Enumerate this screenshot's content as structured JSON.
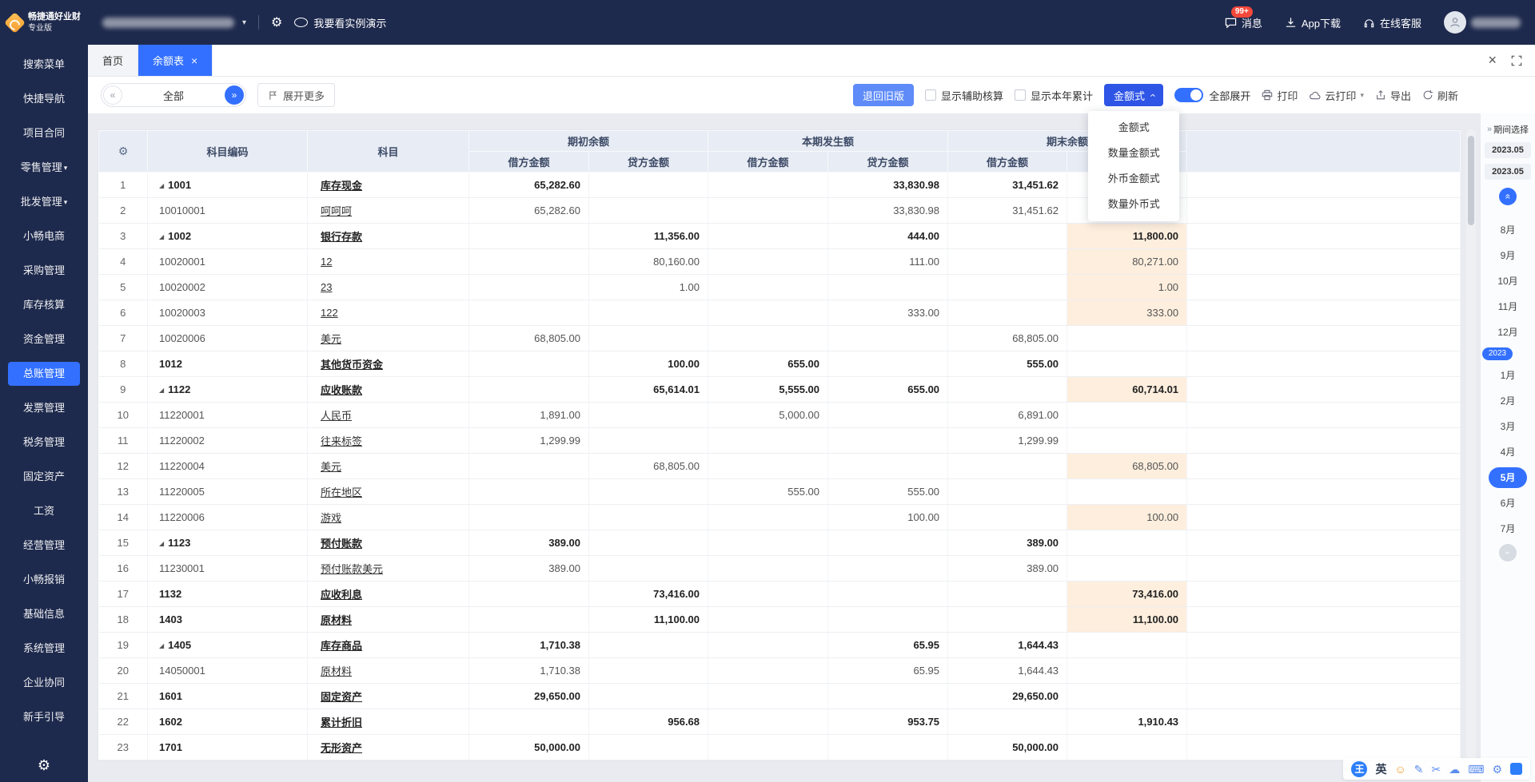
{
  "brand": {
    "line1": "畅捷通好业财",
    "line2": "专业版"
  },
  "topbar": {
    "demo_link": "我要看实例演示",
    "messages": "消息",
    "badge": "99+",
    "app_download": "App下载",
    "support": "在线客服"
  },
  "sidebar": {
    "items": [
      {
        "key": "search-menu",
        "label": "搜索菜单"
      },
      {
        "key": "quick-nav",
        "label": "快捷导航"
      },
      {
        "key": "project-contract",
        "label": "项目合同"
      },
      {
        "key": "retail-mgmt",
        "label": "零售管理",
        "arrow": true
      },
      {
        "key": "wholesale-mgmt",
        "label": "批发管理",
        "arrow": true
      },
      {
        "key": "xiaochang-ecommerce",
        "label": "小畅电商"
      },
      {
        "key": "purchase-mgmt",
        "label": "采购管理"
      },
      {
        "key": "inventory-accounting",
        "label": "库存核算"
      },
      {
        "key": "funds-mgmt",
        "label": "资金管理"
      },
      {
        "key": "general-ledger",
        "label": "总账管理",
        "active": true
      },
      {
        "key": "invoice-mgmt",
        "label": "发票管理"
      },
      {
        "key": "tax-mgmt",
        "label": "税务管理"
      },
      {
        "key": "fixed-assets",
        "label": "固定资产"
      },
      {
        "key": "payroll",
        "label": "工资"
      },
      {
        "key": "operations-mgmt",
        "label": "经营管理"
      },
      {
        "key": "xiaochang-expense",
        "label": "小畅报销"
      },
      {
        "key": "basic-info",
        "label": "基础信息"
      },
      {
        "key": "system-mgmt",
        "label": "系统管理"
      },
      {
        "key": "enterprise-collab",
        "label": "企业协同"
      },
      {
        "key": "beginner-guide",
        "label": "新手引导"
      }
    ]
  },
  "tabs": {
    "home": "首页",
    "balance": "余额表"
  },
  "toolbar": {
    "filter": "全部",
    "expand_more": "展开更多",
    "back_old": "退回旧版",
    "show_aux": "显示辅助核算",
    "show_ytd": "显示本年累计",
    "format": "金额式",
    "expand_all": "全部展开",
    "print": "打印",
    "cloud_print": "云打印",
    "export": "导出",
    "refresh": "刷新"
  },
  "format_menu": {
    "items": [
      "金额式",
      "数量金额式",
      "外币金额式",
      "数量外币式"
    ]
  },
  "period": {
    "title": "期间选择",
    "date_start": "2023.05",
    "date_end": "2023.05",
    "year": "2023",
    "months_before": [
      "8月",
      "9月",
      "10月",
      "11月",
      "12月"
    ],
    "months_after": [
      "1月",
      "2月",
      "3月",
      "4月",
      "5月",
      "6月",
      "7月"
    ],
    "selected": "5月"
  },
  "table": {
    "groups": {
      "opening": "期初余额",
      "current": "本期发生额",
      "ending": "期末余额"
    },
    "headers": {
      "code": "科目编码",
      "subject": "科目",
      "debit": "借方金额",
      "credit": "贷方金额"
    },
    "rows": [
      {
        "n": "1",
        "code": "1001",
        "name": "库存现金",
        "bold": true,
        "exp": true,
        "obd": "65,282.60",
        "cpc": "33,830.98",
        "ebd": "31,451.62"
      },
      {
        "n": "2",
        "code": "10010001",
        "name": "呵呵呵",
        "obd": "65,282.60",
        "cpc": "33,830.98",
        "ebd": "31,451.62"
      },
      {
        "n": "3",
        "code": "1002",
        "name": "银行存款",
        "bold": true,
        "exp": true,
        "obc": "11,356.00",
        "cpc": "444.00",
        "ebc": "11,800.00",
        "flag": true
      },
      {
        "n": "4",
        "code": "10020001",
        "name": "12",
        "obc": "80,160.00",
        "cpc": "111.00",
        "ebc": "80,271.00",
        "flag": true
      },
      {
        "n": "5",
        "code": "10020002",
        "name": "23",
        "obc": "1.00",
        "ebc": "1.00",
        "flag": true
      },
      {
        "n": "6",
        "code": "10020003",
        "name": "122",
        "cpc": "333.00",
        "ebc": "333.00",
        "flag": true
      },
      {
        "n": "7",
        "code": "10020006",
        "name": "美元",
        "obd": "68,805.00",
        "ebd": "68,805.00"
      },
      {
        "n": "8",
        "code": "1012",
        "name": "其他货币资金",
        "bold": true,
        "obc": "100.00",
        "cpd": "655.00",
        "ebd": "555.00"
      },
      {
        "n": "9",
        "code": "1122",
        "name": "应收账款",
        "bold": true,
        "exp": true,
        "obc": "65,614.01",
        "cpd": "5,555.00",
        "cpc": "655.00",
        "ebc": "60,714.01",
        "flag": true
      },
      {
        "n": "10",
        "code": "11220001",
        "name": "人民币",
        "obd": "1,891.00",
        "cpd": "5,000.00",
        "ebd": "6,891.00"
      },
      {
        "n": "11",
        "code": "11220002",
        "name": "往来标签",
        "obd": "1,299.99",
        "ebd": "1,299.99"
      },
      {
        "n": "12",
        "code": "11220004",
        "name": "美元",
        "obc": "68,805.00",
        "ebc": "68,805.00",
        "flag": true
      },
      {
        "n": "13",
        "code": "11220005",
        "name": "所在地区",
        "cpd": "555.00",
        "cpc": "555.00"
      },
      {
        "n": "14",
        "code": "11220006",
        "name": "游戏",
        "cpc": "100.00",
        "ebc": "100.00",
        "flag": true
      },
      {
        "n": "15",
        "code": "1123",
        "name": "预付账款",
        "bold": true,
        "exp": true,
        "obd": "389.00",
        "ebd": "389.00"
      },
      {
        "n": "16",
        "code": "11230001",
        "name": "预付账款美元",
        "obd": "389.00",
        "ebd": "389.00"
      },
      {
        "n": "17",
        "code": "1132",
        "name": "应收利息",
        "bold": true,
        "obc": "73,416.00",
        "ebc": "73,416.00",
        "flag": true
      },
      {
        "n": "18",
        "code": "1403",
        "name": "原材料",
        "bold": true,
        "obc": "11,100.00",
        "ebc": "11,100.00",
        "flag": true
      },
      {
        "n": "19",
        "code": "1405",
        "name": "库存商品",
        "bold": true,
        "exp": true,
        "obd": "1,710.38",
        "cpc": "65.95",
        "ebd": "1,644.43"
      },
      {
        "n": "20",
        "code": "14050001",
        "name": "原材料",
        "obd": "1,710.38",
        "cpc": "65.95",
        "ebd": "1,644.43"
      },
      {
        "n": "21",
        "code": "1601",
        "name": "固定资产",
        "bold": true,
        "obd": "29,650.00",
        "ebd": "29,650.00"
      },
      {
        "n": "22",
        "code": "1602",
        "name": "累计折旧",
        "bold": true,
        "obc": "956.68",
        "cpc": "953.75",
        "ebc": "1,910.43"
      },
      {
        "n": "23",
        "code": "1701",
        "name": "无形资产",
        "bold": true,
        "obd": "50,000.00",
        "ebd": "50,000.00"
      }
    ]
  },
  "ime": {
    "logo": "王",
    "lang": "英",
    "icons": [
      {
        "name": "emoji-icon",
        "glyph": "☺",
        "color": "#f0a030"
      },
      {
        "name": "pen-icon",
        "glyph": "✎",
        "color": "#5b8def"
      },
      {
        "name": "scissors-icon",
        "glyph": "✂",
        "color": "#5b8def"
      },
      {
        "name": "cloud-icon",
        "glyph": "☁",
        "color": "#5b8def"
      },
      {
        "name": "keyboard-icon",
        "glyph": "⌨",
        "color": "#5b8def"
      },
      {
        "name": "settings-icon",
        "glyph": "⚙",
        "color": "#5b8def"
      }
    ]
  },
  "icons": {
    "gear": "⚙",
    "caret_down": "▾",
    "triangle": "◢",
    "close": "×",
    "double_left": "«",
    "double_right": "»",
    "chevron_right": "›"
  },
  "colors": {
    "accent": "#3370ff",
    "nav_dark": "#1e2a4d",
    "format_button": "#2e55e6",
    "back_button": "#5e8bf8",
    "highlight_cell": "#fdeedd",
    "badge_red": "#f5483b"
  }
}
